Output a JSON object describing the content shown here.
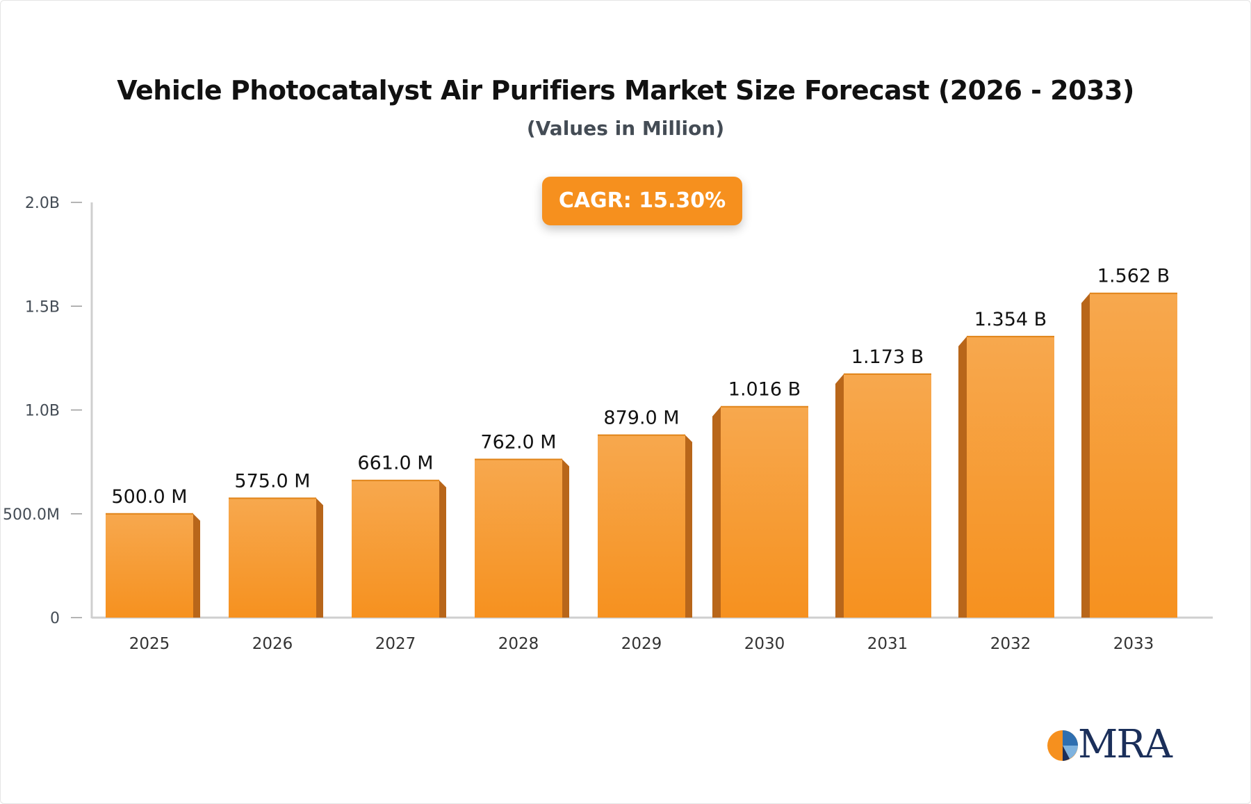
{
  "header": {
    "title": "Vehicle Photocatalyst Air Purifiers Market Size Forecast (2026 - 2033)",
    "subtitle": "(Values in Million)",
    "cagr_label": "CAGR: 15.30%"
  },
  "colors": {
    "bar_front_top": "#f7a84e",
    "bar_front_bottom": "#f6911f",
    "bar_side": "#b8661a",
    "axis": "#cfcfcf",
    "cagr_bg": "#f6901e"
  },
  "logo": {
    "text": "MRA",
    "icon": "pie-chart-logo-icon"
  },
  "chart_data": {
    "type": "bar",
    "categories": [
      "2025",
      "2026",
      "2027",
      "2028",
      "2029",
      "2030",
      "2031",
      "2032",
      "2033"
    ],
    "values": [
      500.0,
      575.0,
      661.0,
      762.0,
      879.0,
      1016,
      1173,
      1354,
      1562
    ],
    "value_labels": [
      "500.0 M",
      "575.0 M",
      "661.0 M",
      "762.0 M",
      "879.0 M",
      "1.016 B",
      "1.173 B",
      "1.354 B",
      "1.562 B"
    ],
    "ylim": [
      0,
      2000
    ],
    "y_ticks": [
      0,
      500,
      1000,
      1500,
      2000
    ],
    "y_tick_labels": [
      "0",
      "500.0M",
      "1.0B",
      "1.5B",
      "2.0B"
    ],
    "grid": false,
    "legend": "none"
  }
}
